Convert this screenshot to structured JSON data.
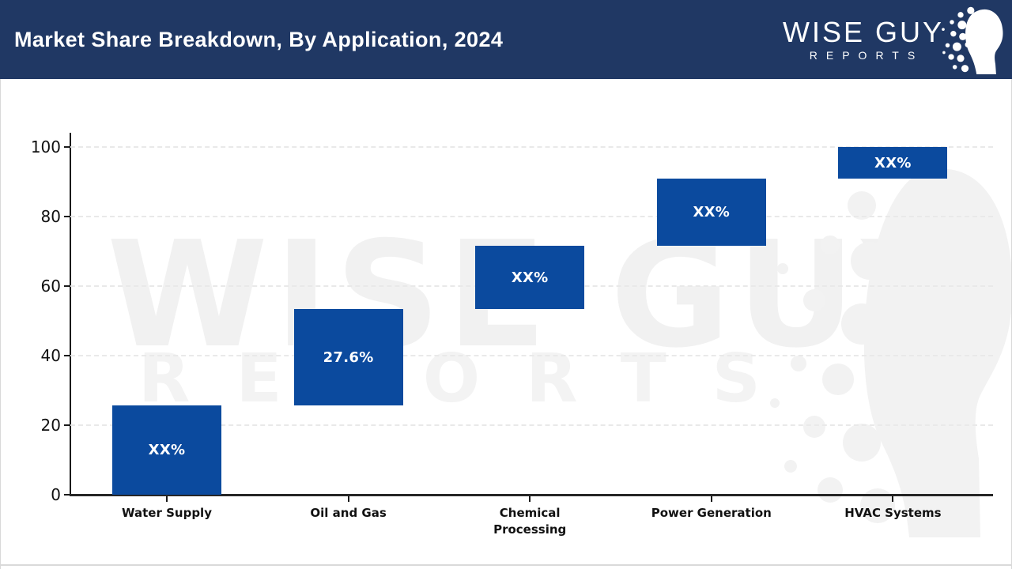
{
  "header": {
    "title": "Market Share Breakdown, By Application, 2024",
    "bg_color": "#203864",
    "logo": {
      "line1": "WISE GUY",
      "line2": "REPORTS"
    }
  },
  "watermark": {
    "line1": "WISE GUY",
    "line2": "REPORTS"
  },
  "chart_data": {
    "type": "bar",
    "subtype": "waterfall-floating-bars",
    "title": "Market Share Breakdown, By Application, 2024",
    "xlabel": "",
    "ylabel": "",
    "categories": [
      "Water Supply",
      "Oil and Gas",
      "Chemical Processing",
      "Power Generation",
      "HVAC Systems"
    ],
    "segments": [
      {
        "category": "Water Supply",
        "start": 0,
        "end": 25.7,
        "value": 25.7,
        "label": "XX%"
      },
      {
        "category": "Oil and Gas",
        "start": 25.7,
        "end": 53.3,
        "value": 27.6,
        "label": "27.6%"
      },
      {
        "category": "Chemical Processing",
        "start": 53.3,
        "end": 71.5,
        "value": 18.2,
        "label": "XX%"
      },
      {
        "category": "Power Generation",
        "start": 71.5,
        "end": 90.8,
        "value": 19.3,
        "label": "XX%"
      },
      {
        "category": "HVAC Systems",
        "start": 90.8,
        "end": 100,
        "value": 9.2,
        "label": "XX%"
      }
    ],
    "yticks": [
      0,
      20,
      40,
      60,
      80,
      100
    ],
    "ylim": [
      0,
      105
    ],
    "grid": "horizontal-dashed",
    "legend": "none",
    "bar_color": "#0b4a9e",
    "bar_label_color": "#ffffff",
    "axis_color": "#1a1a1a",
    "gridline_color": "#e9e9e9"
  }
}
